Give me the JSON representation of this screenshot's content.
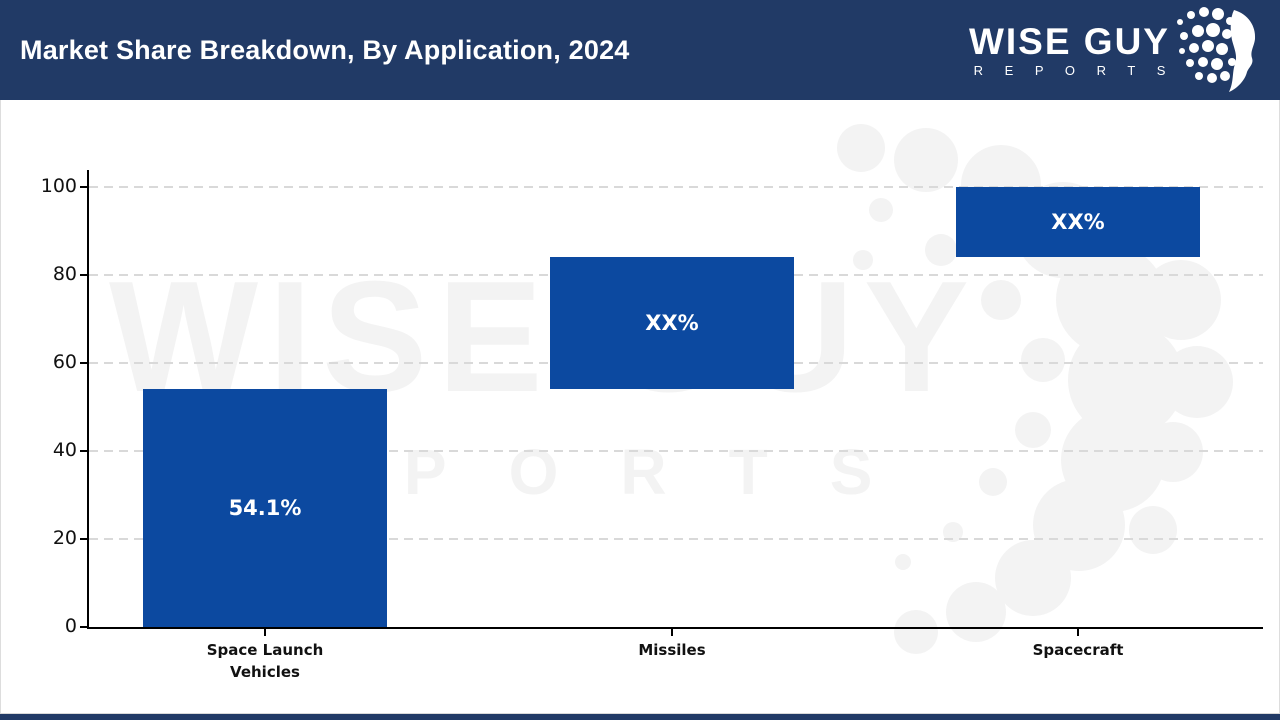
{
  "header": {
    "title": "Market Share Breakdown, By Application, 2024",
    "logo_line1": "WISE GUY",
    "logo_line2": "R E P O R T S"
  },
  "watermark": {
    "line1": "WISE GUY",
    "line2": "REPORTS"
  },
  "colors": {
    "header_bg": "#213A66",
    "footer_bg": "#213A66",
    "bar": "#0C49A0",
    "bar_label": "#ffffff",
    "gridline": "#d9d9d9",
    "watermark": "#f3f3f3"
  },
  "chart_data": {
    "type": "bar",
    "subtype": "floating-waterfall",
    "title": "Market Share Breakdown, By Application, 2024",
    "categories": [
      "Space Launch Vehicles",
      "Missiles",
      "Spacecraft"
    ],
    "category_lines": [
      [
        "Space Launch",
        "Vehicles"
      ],
      [
        "Missiles"
      ],
      [
        "Spacecraft"
      ]
    ],
    "segments": [
      {
        "name": "Space Launch Vehicles",
        "start": 0,
        "end": 54.1,
        "label": "54.1%"
      },
      {
        "name": "Missiles",
        "start": 54.1,
        "end": 84.1,
        "label": "XX%"
      },
      {
        "name": "Spacecraft",
        "start": 84.1,
        "end": 100,
        "label": "XX%"
      }
    ],
    "xlabel": "",
    "ylabel": "",
    "ylim": [
      0,
      104
    ],
    "yticks": [
      0,
      20,
      40,
      60,
      80,
      100
    ],
    "grid": true,
    "legend": false
  }
}
